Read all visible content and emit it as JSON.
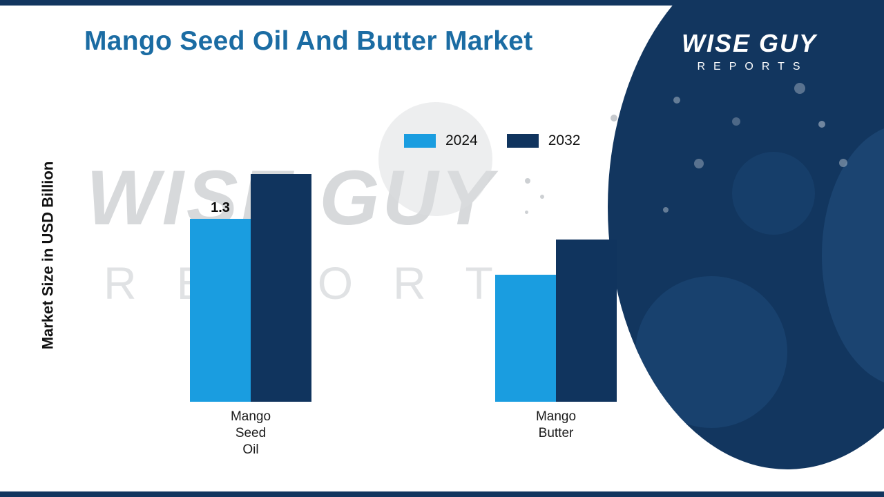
{
  "title": "Mango Seed Oil And Butter Market",
  "y_axis_label": "Market Size in USD Billion",
  "watermark": {
    "line1": "WISE GUY",
    "line2": "REPORT"
  },
  "logo": {
    "name": "WISE GUY",
    "tagline": "REPORTS"
  },
  "colors": {
    "series_2024": "#1a9de0",
    "series_2032": "#10345e",
    "banner": "#12365f",
    "title": "#1b6ca3"
  },
  "chart_data": {
    "type": "bar",
    "title": "Mango Seed Oil And Butter Market",
    "ylabel": "Market Size in USD Billion",
    "categories": [
      "Mango Seed Oil",
      "Mango Butter"
    ],
    "category_lines": [
      [
        "Mango",
        "Seed",
        "Oil"
      ],
      [
        "Mango",
        "Butter"
      ]
    ],
    "series": [
      {
        "name": "2024",
        "color": "#1a9de0",
        "values": [
          1.3,
          0.9
        ]
      },
      {
        "name": "2032",
        "color": "#10345e",
        "values": [
          1.62,
          1.15
        ]
      }
    ],
    "ylim": [
      0,
      1.8
    ],
    "grid": false,
    "legend_position": "top",
    "data_labels": [
      {
        "series": "2024",
        "category": "Mango Seed Oil",
        "text": "1.3"
      }
    ]
  }
}
